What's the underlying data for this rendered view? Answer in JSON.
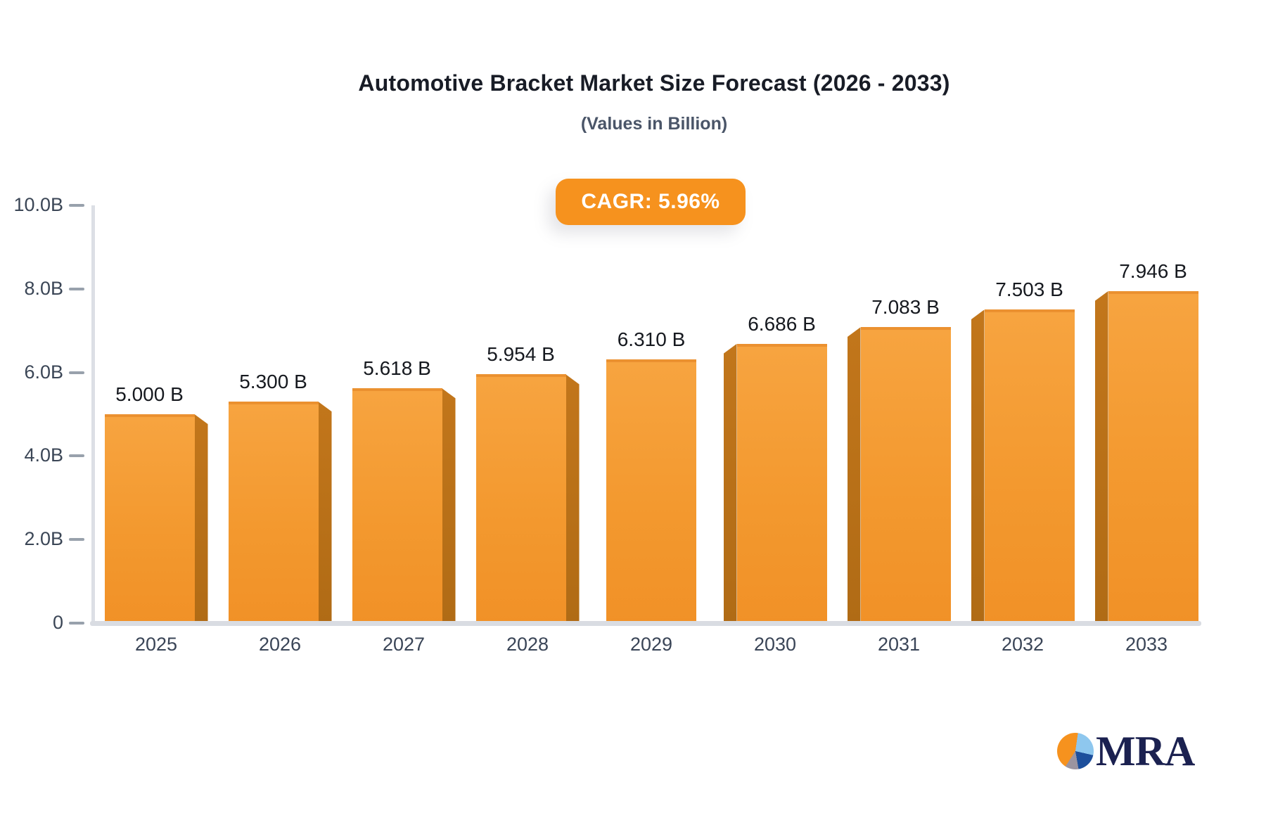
{
  "chart_data": {
    "type": "bar",
    "title": "Automotive Bracket Market Size Forecast (2026 - 2033)",
    "subtitle": "(Values in Billion)",
    "cagr_badge": "CAGR: 5.96%",
    "categories": [
      "2025",
      "2026",
      "2027",
      "2028",
      "2029",
      "2030",
      "2031",
      "2032",
      "2033"
    ],
    "values": [
      5.0,
      5.3,
      5.618,
      5.954,
      6.31,
      6.686,
      7.083,
      7.503,
      7.946
    ],
    "value_labels": [
      "5.000 B",
      "5.300 B",
      "5.618 B",
      "5.954 B",
      "6.310 B",
      "6.686 B",
      "7.083 B",
      "7.503 B",
      "7.946 B"
    ],
    "y_ticks": [
      {
        "value": 0,
        "label": "0"
      },
      {
        "value": 2,
        "label": "2.0B"
      },
      {
        "value": 4,
        "label": "4.0B"
      },
      {
        "value": 6,
        "label": "6.0B"
      },
      {
        "value": 8,
        "label": "8.0B"
      },
      {
        "value": 10,
        "label": "10.0B"
      }
    ],
    "ylim": [
      0,
      10
    ],
    "xlabel": "",
    "ylabel": "",
    "grid": "off",
    "legend": "none",
    "colors": {
      "bar_top": "#f7a440",
      "bar_bottom": "#f19127",
      "bar_side": "#b87018",
      "badge_background": "#f6921e",
      "badge_text": "#ffffff",
      "axis_line": "#dcdfe5",
      "tick_label": "#3b4656",
      "value_label": "#16191f",
      "title_text": "#181c26",
      "subtitle_text": "#4a5568"
    }
  },
  "logo": {
    "text": "MRA",
    "pie_colors": {
      "orange": "#f6921e",
      "light_blue": "#8ec7ee",
      "dark_blue": "#1d4f9c",
      "gray": "#9b94a0"
    }
  }
}
